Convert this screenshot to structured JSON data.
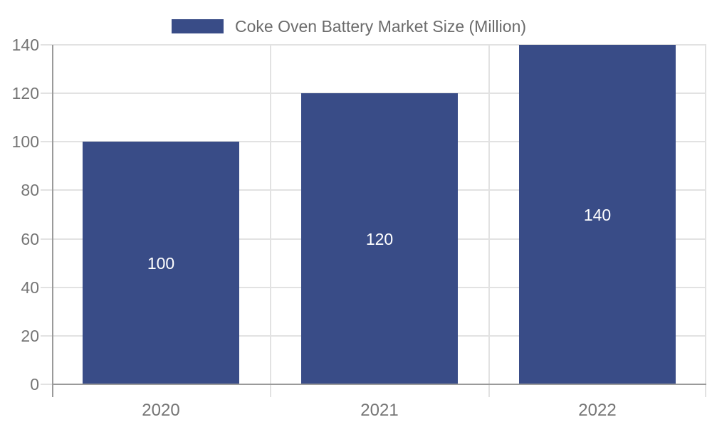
{
  "chart_data": {
    "type": "bar",
    "title": "Coke Oven Battery Market Size (Million)",
    "legend": {
      "position": "top-center",
      "label": "Coke Oven Battery Market Size (Million)"
    },
    "categories": [
      "2020",
      "2021",
      "2022"
    ],
    "values": [
      100,
      120,
      140
    ],
    "series": [
      {
        "name": "Coke Oven Battery Market Size (Million)",
        "values": [
          100,
          120,
          140
        ]
      }
    ],
    "xlabel": "",
    "ylabel": "",
    "ylim": [
      0,
      140
    ],
    "yticks": [
      0,
      20,
      40,
      60,
      80,
      100,
      120,
      140
    ],
    "grid": true,
    "colors": {
      "bar": "#394C87",
      "value_label": "#ffffff",
      "axis": "#9a9a9a",
      "gridline": "#e2e2e2",
      "tick_label": "#757575",
      "legend_text": "#6b6b6b"
    }
  }
}
